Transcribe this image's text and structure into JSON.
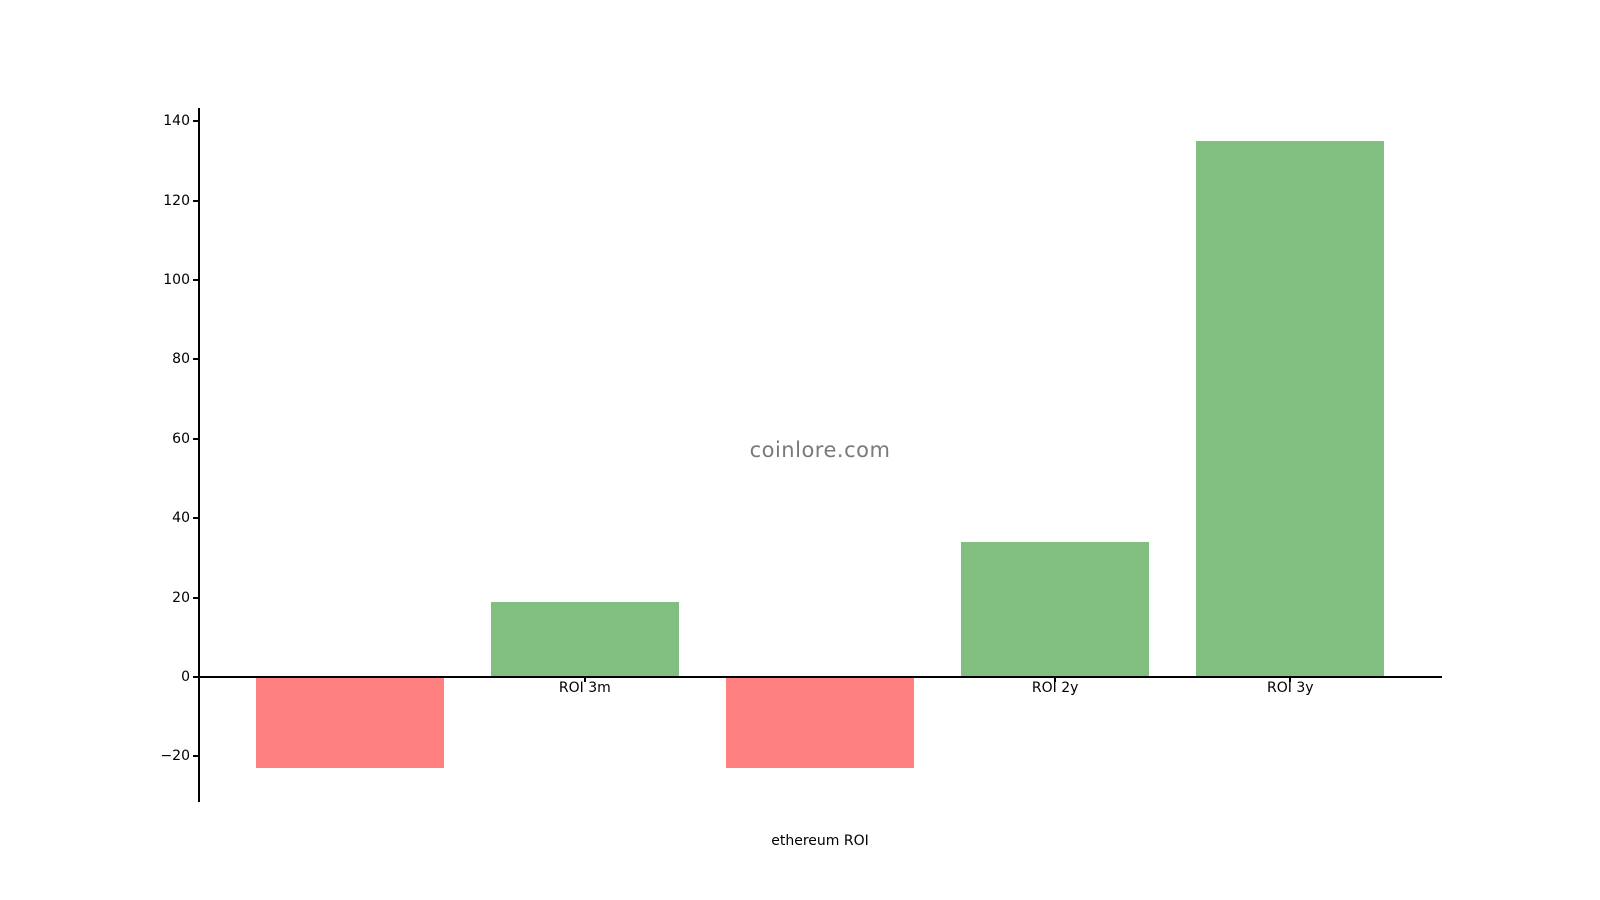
{
  "watermark": "coinlore.com",
  "chart_data": {
    "type": "bar",
    "title": "",
    "xlabel": "ethereum ROI",
    "ylabel": "",
    "watermark": "coinlore.com",
    "categories": [
      "",
      "ROI 3m",
      "",
      "ROI 2y",
      "ROI 3y"
    ],
    "values": [
      -23,
      19,
      -23,
      34,
      135
    ],
    "bar_colors": [
      "#ff8080",
      "#80bf80",
      "#ff8080",
      "#80bf80",
      "#80bf80"
    ],
    "positive_color": "#80bf80",
    "negative_color": "#ff8080",
    "y_ticks": [
      140,
      120,
      100,
      80,
      60,
      40,
      20,
      0,
      -20
    ],
    "ylim": [
      -31.5,
      143.3
    ],
    "xlim": [
      -0.645,
      4.645
    ],
    "bar_width": 0.8,
    "grid": false,
    "legend": null,
    "axis_color": "#000000",
    "text_color": "#000000",
    "watermark_color": "#7a7a7a",
    "notes": "Two red bars extend below the zero baseline and cover their category tick labels; x tick marks and labels sit just below the zero line."
  }
}
